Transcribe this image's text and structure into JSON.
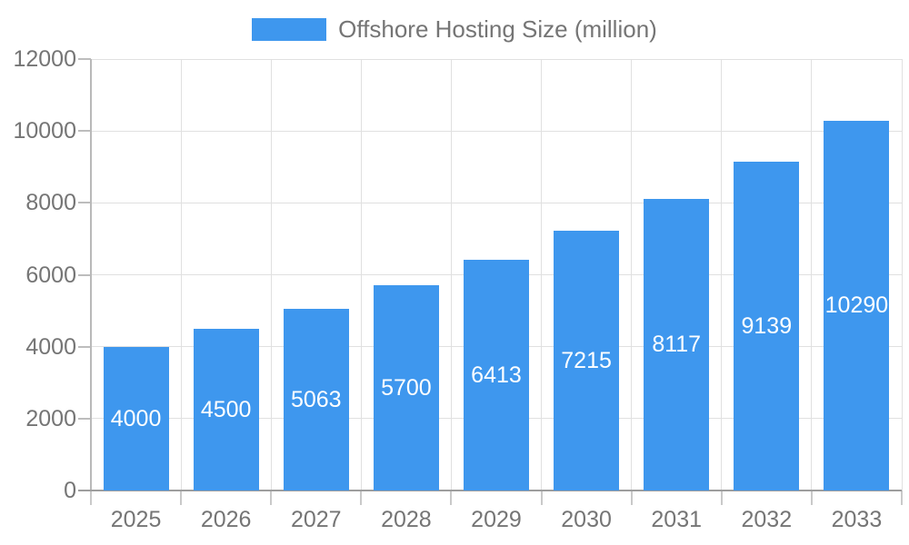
{
  "chart_data": {
    "type": "bar",
    "title": "Offshore Hosting Size (million)",
    "categories": [
      "2025",
      "2026",
      "2027",
      "2028",
      "2029",
      "2030",
      "2031",
      "2032",
      "2033"
    ],
    "series": [
      {
        "name": "Offshore Hosting Size (million)",
        "values": [
          4000,
          4500,
          5063,
          5700,
          6413,
          7215,
          8117,
          9139,
          10290
        ]
      }
    ],
    "xlabel": "",
    "ylabel": "",
    "ylim": [
      0,
      12000
    ],
    "ytick_step": 2000,
    "grid": true,
    "legend_position": "top",
    "value_labels": "inside-center",
    "colors": {
      "bar": "#3E97EE",
      "axis_text": "#757575",
      "value_text": "#ffffff",
      "gridline": "#e0e0e0",
      "x_axis_line": "#9e9e9e",
      "y_axis_line": "#b9b9b9",
      "tick": "#c9c9c9",
      "background": "#ffffff"
    }
  }
}
